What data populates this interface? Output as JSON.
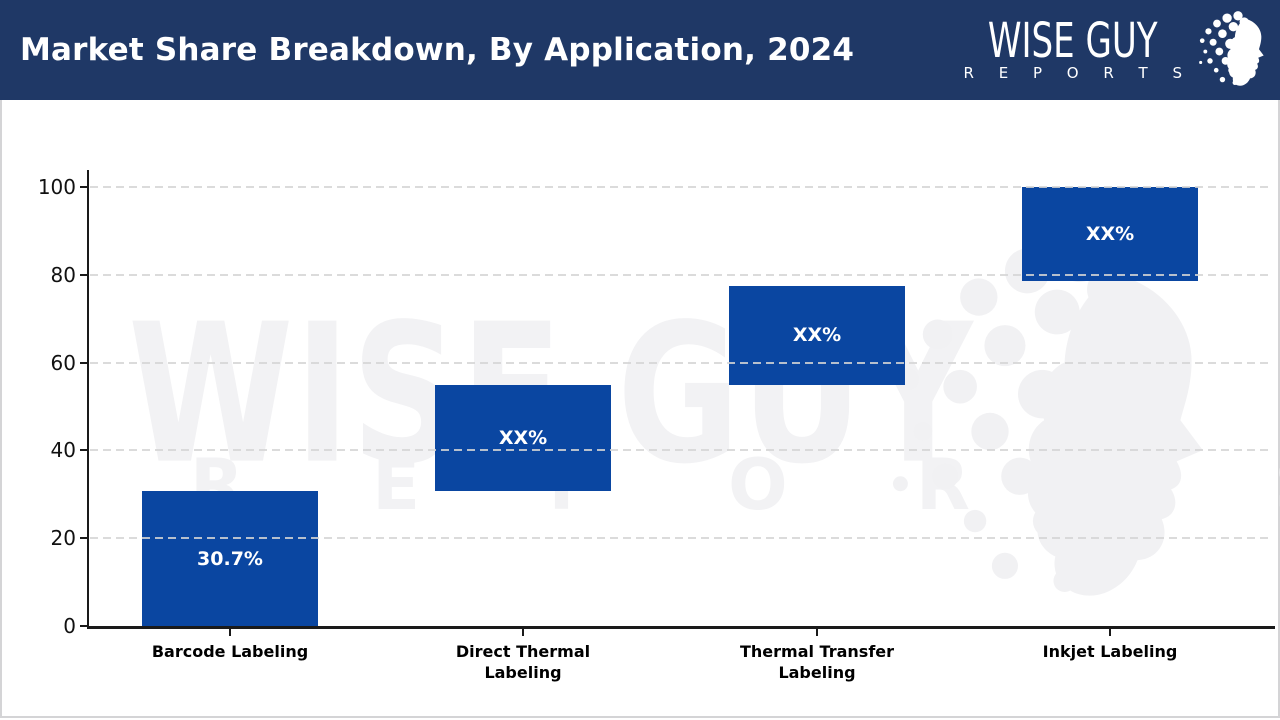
{
  "header": {
    "title": "Market Share Breakdown, By Application, 2024"
  },
  "logo": {
    "name_top": "WISE GUY",
    "name_bottom": "R E P O R T S"
  },
  "watermark": {
    "text_top": "WISE GUY",
    "text_bottom": "R E P O R T S"
  },
  "chart_data": {
    "type": "bar",
    "subtype": "waterfall",
    "title": "Market Share Breakdown, By Application, 2024",
    "categories": [
      "Barcode Labeling",
      "Direct Thermal\nLabeling",
      "Thermal Transfer\nLabeling",
      "Inkjet Labeling"
    ],
    "segments": [
      {
        "category": "Barcode Labeling",
        "from": 0,
        "to": 30.7,
        "label": "30.7%"
      },
      {
        "category": "Direct Thermal Labeling",
        "from": 30.7,
        "to": 55,
        "label": "XX%"
      },
      {
        "category": "Thermal Transfer Labeling",
        "from": 55,
        "to": 77.5,
        "label": "XX%"
      },
      {
        "category": "Inkjet Labeling",
        "from": 78.5,
        "to": 100,
        "label": "XX%"
      }
    ],
    "ylim": [
      0,
      100
    ],
    "yticks": [
      0,
      20,
      40,
      60,
      80,
      100
    ],
    "grid": {
      "axis": "y",
      "style": "dashed",
      "color": "#d9d9d9"
    },
    "legend": "none",
    "colors": {
      "bar": "#0A46A1",
      "bar_label": "#ffffff",
      "header_bg": "#1F3866",
      "axis": "#1a1a1a",
      "watermark": "#f2f2f4"
    }
  }
}
